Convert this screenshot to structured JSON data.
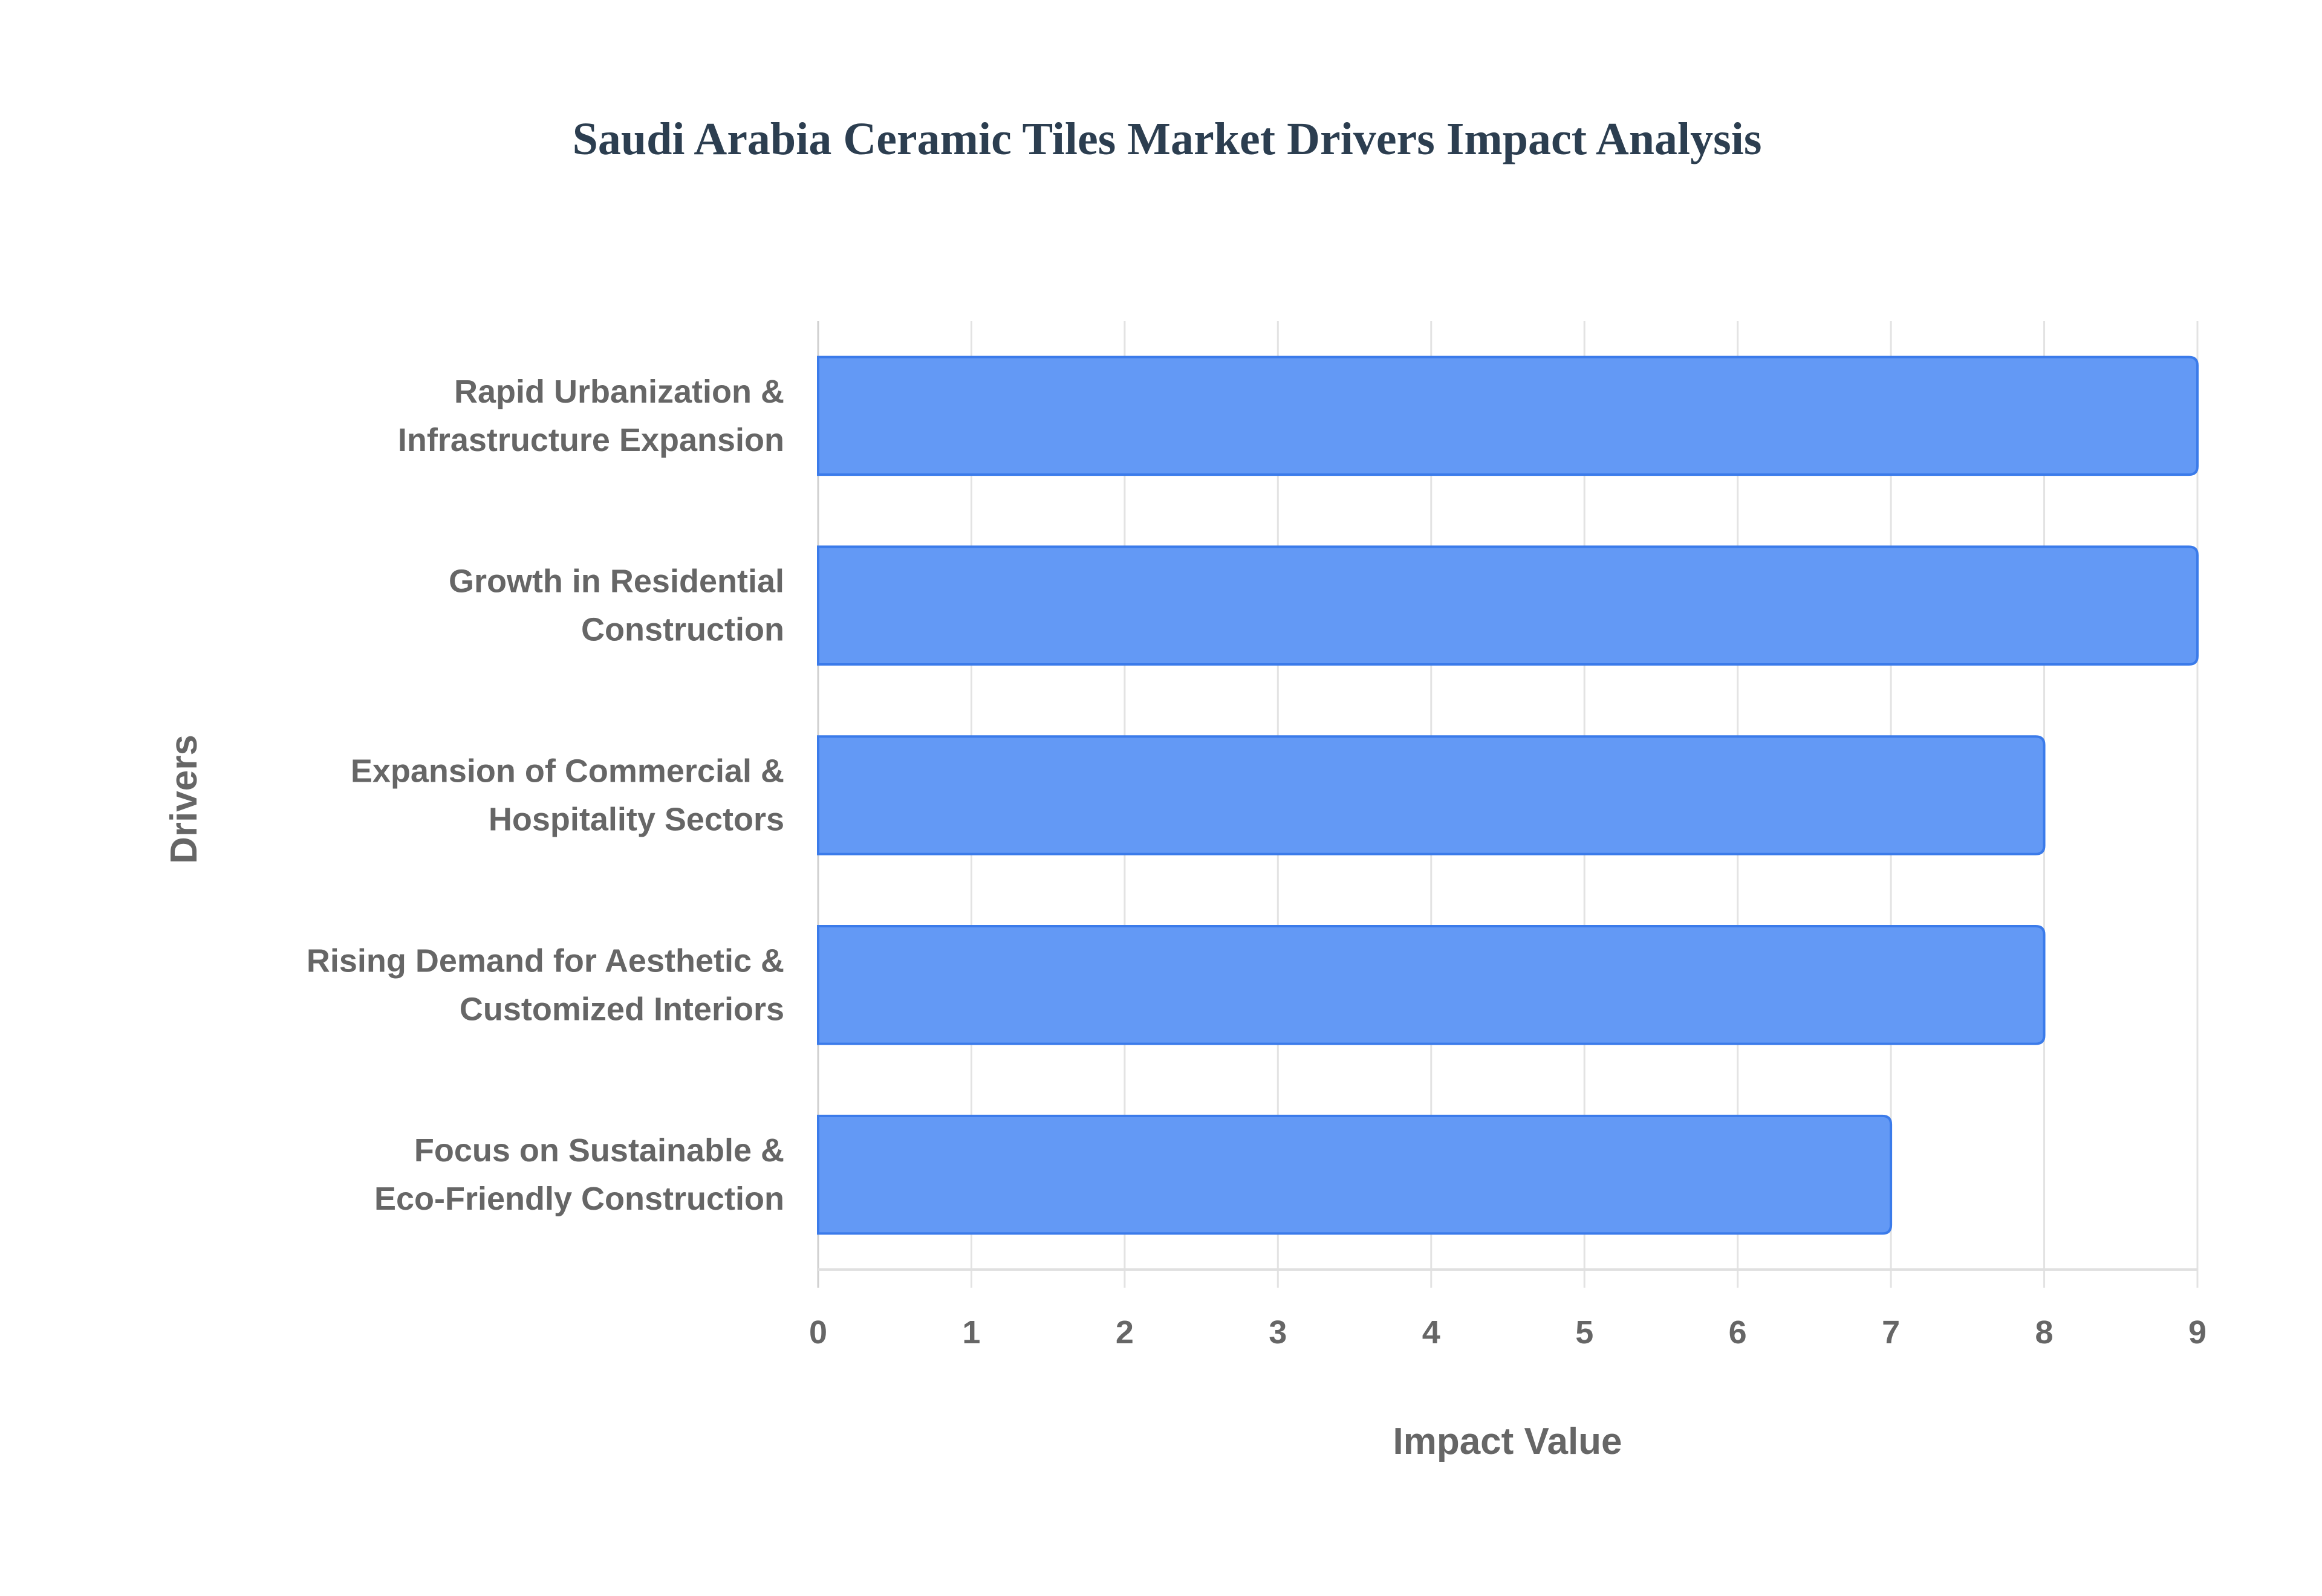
{
  "chart_data": {
    "type": "bar",
    "orientation": "horizontal",
    "title": "Saudi Arabia Ceramic Tiles Market Drivers Impact Analysis",
    "xlabel": "Impact Value",
    "ylabel": "Drivers",
    "categories": [
      [
        "Rapid Urbanization &",
        "Infrastructure Expansion"
      ],
      [
        "Growth in Residential",
        "Construction"
      ],
      [
        "Expansion of Commercial &",
        "Hospitality Sectors"
      ],
      [
        "Rising Demand for Aesthetic &",
        "Customized Interiors"
      ],
      [
        "Focus on Sustainable &",
        "Eco-Friendly Construction"
      ]
    ],
    "values": [
      9,
      9,
      8,
      8,
      7
    ],
    "xlim": [
      0,
      9
    ],
    "xticks": [
      "0",
      "1",
      "2",
      "3",
      "4",
      "5",
      "6",
      "7",
      "8",
      "9"
    ],
    "grid": true,
    "legend": "none",
    "colors": {
      "bar_fill": "#6399f5",
      "bar_border": "#3b7bea",
      "grid": "#e3e3e3",
      "text": "#666666",
      "title": "#2c3e50"
    }
  }
}
